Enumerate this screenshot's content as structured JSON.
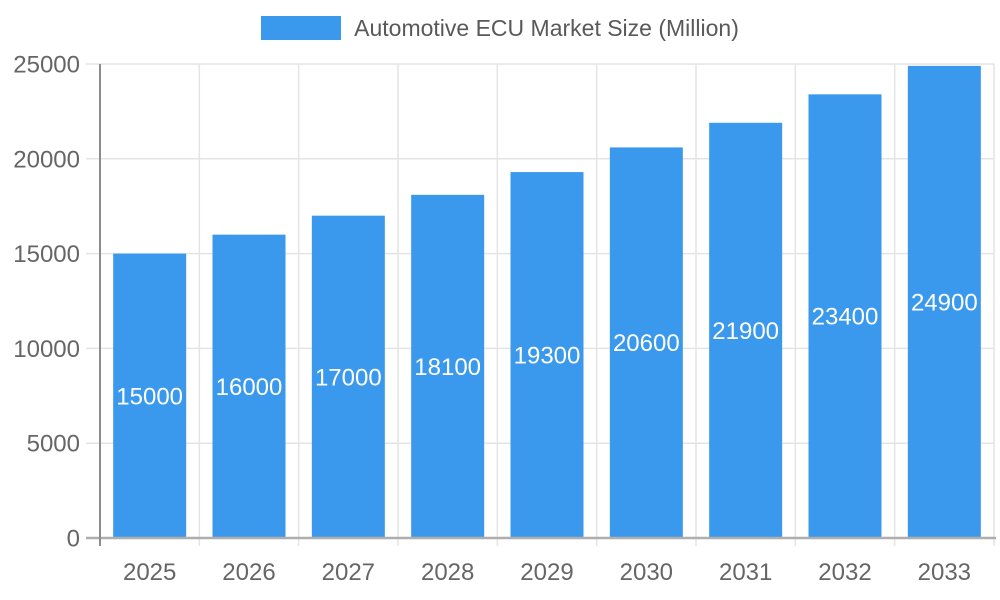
{
  "legend": {
    "label": "Automotive ECU Market Size (Million)"
  },
  "chart_data": {
    "type": "bar",
    "title": "Automotive ECU Market Size (Million)",
    "categories": [
      "2025",
      "2026",
      "2027",
      "2028",
      "2029",
      "2030",
      "2031",
      "2032",
      "2033"
    ],
    "values": [
      15000,
      16000,
      17000,
      18100,
      19300,
      20600,
      21900,
      23400,
      24900
    ],
    "xlabel": "",
    "ylabel": "",
    "ylim": [
      0,
      25000
    ],
    "yticks": [
      0,
      5000,
      10000,
      15000,
      20000,
      25000
    ],
    "grid": true,
    "legend_position": "top",
    "bar_labels_inside": true,
    "colors": {
      "bar": "#3A99ED",
      "bar_label": "#FFFFFF",
      "grid_line": "#E4E4E4",
      "y_axis_line": "#8C8C8C",
      "x_axis_line": "#AEAEAE",
      "tick_label": "#666666",
      "title": "#595959",
      "background": "#FFFFFF"
    }
  }
}
